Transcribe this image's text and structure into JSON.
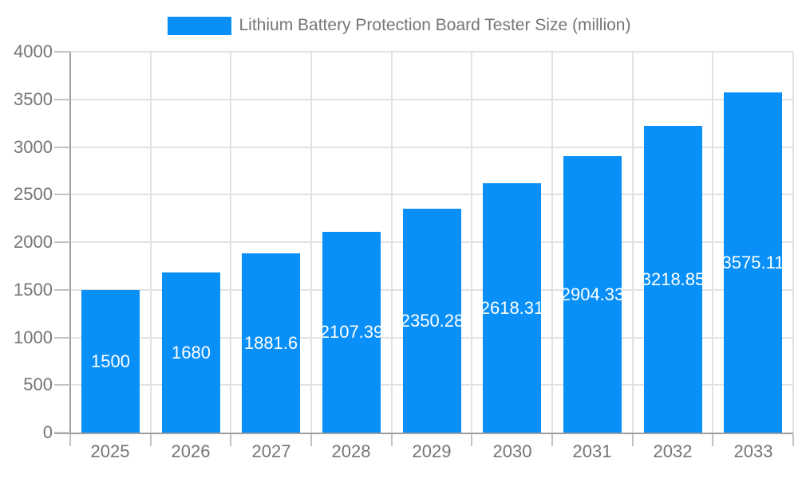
{
  "legend": {
    "label": "Lithium Battery Protection Board Tester Size (million)",
    "swatch_color": "#0890f8"
  },
  "chart_data": {
    "type": "bar",
    "title": "Lithium Battery Protection Board Tester Size (million)",
    "categories": [
      "2025",
      "2026",
      "2027",
      "2028",
      "2029",
      "2030",
      "2031",
      "2032",
      "2033"
    ],
    "values": [
      1500,
      1680,
      1881.6,
      2107.39,
      2350.28,
      2618.31,
      2904.33,
      3218.85,
      3575.11
    ],
    "bar_labels": [
      "1500",
      "1680",
      "1881.6",
      "2107.39",
      "2350.28",
      "2618.31",
      "2904.33",
      "3218.85",
      "3575.11"
    ],
    "xlabel": "",
    "ylabel": "",
    "ylim": [
      0,
      4000
    ],
    "yticks": [
      0,
      500,
      1000,
      1500,
      2000,
      2500,
      3000,
      3500,
      4000
    ],
    "ytick_labels": [
      "0",
      "500",
      "1000",
      "1500",
      "2000",
      "2500",
      "3000",
      "3500",
      "4000"
    ],
    "grid": true,
    "legend_position": "top",
    "bar_color": "#0890f8",
    "bar_label_color": "#ffffff",
    "axis_color": "#9e9e9e",
    "grid_color": "#e2e2e2",
    "tick_color": "#c2c2c2",
    "text_color": "#757575"
  }
}
